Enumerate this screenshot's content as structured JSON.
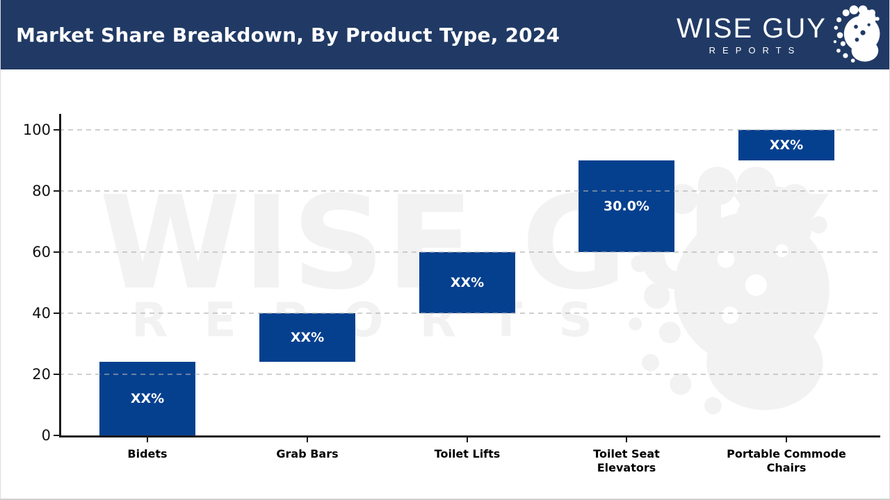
{
  "header": {
    "title": "Market Share Breakdown, By Product Type, 2024",
    "bg_color": "#213A65",
    "logo": {
      "wordmark": "WISE GUY",
      "subtitle": "REPORTS"
    }
  },
  "watermark": {
    "line1": "WISE GUY",
    "line2": "REPORTS"
  },
  "chart_data": {
    "type": "bar",
    "subtype": "waterfall",
    "title": "Market Share Breakdown, By Product Type, 2024",
    "categories": [
      "Bidets",
      "Grab Bars",
      "Toilet Lifts",
      "Toilet Seat\nElevators",
      "Portable Commode\nChairs"
    ],
    "series": [
      {
        "name": "Market Share",
        "segments": [
          {
            "category": "Bidets",
            "start": 0,
            "end": 24,
            "label": "XX%"
          },
          {
            "category": "Grab Bars",
            "start": 24,
            "end": 40,
            "label": "XX%"
          },
          {
            "category": "Toilet Lifts",
            "start": 40,
            "end": 60,
            "label": "XX%"
          },
          {
            "category": "Toilet Seat Elevators",
            "start": 60,
            "end": 90,
            "label": "30.0%"
          },
          {
            "category": "Portable Commode Chairs",
            "start": 90,
            "end": 100,
            "label": "XX%"
          }
        ]
      }
    ],
    "xlabel": "",
    "ylabel": "",
    "ylim": [
      0,
      100
    ],
    "yticks": [
      0,
      20,
      40,
      60,
      80,
      100
    ],
    "bar_color": "#05408F",
    "grid": true,
    "grid_style": "dashed",
    "legend": false
  }
}
